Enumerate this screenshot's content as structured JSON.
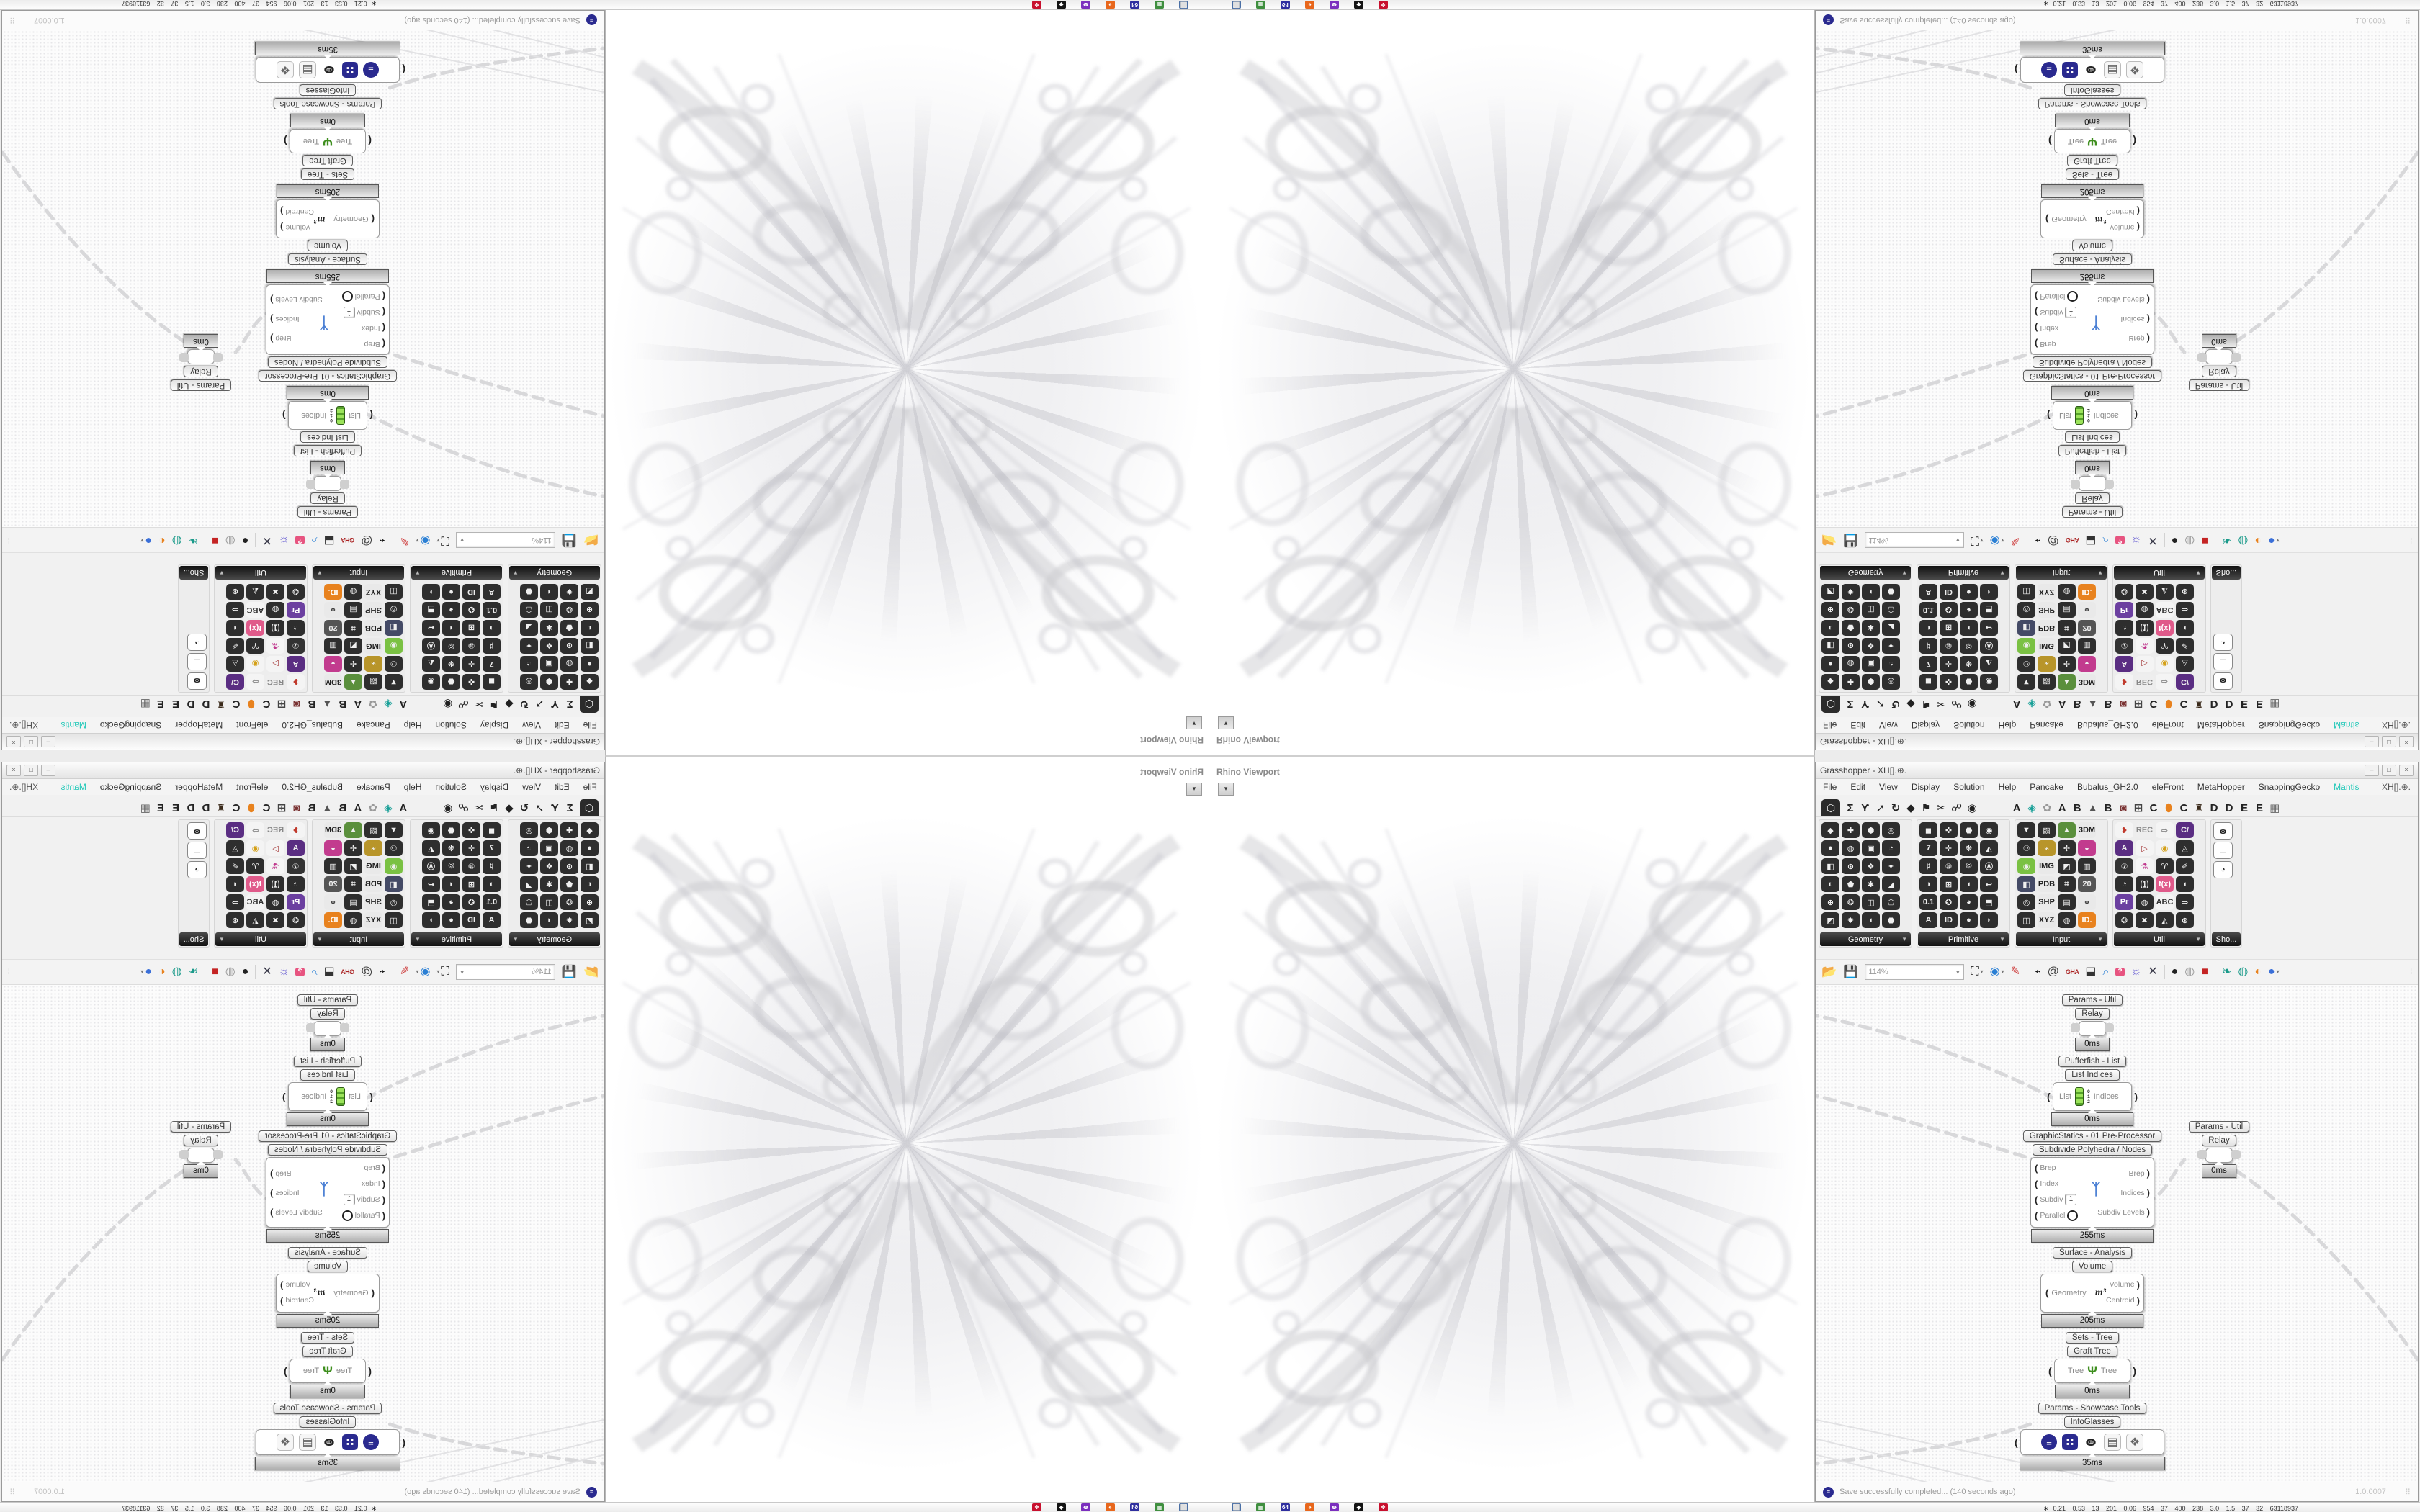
{
  "viewport": {
    "title": "Rhino Viewport",
    "dropdown_glyph": "▾"
  },
  "gh": {
    "title": "Grasshopper - XH[].⊕.",
    "window_buttons": {
      "minimize": "–",
      "maximize": "□",
      "close": "×"
    },
    "menus": [
      {
        "label": "File"
      },
      {
        "label": "Edit"
      },
      {
        "label": "View"
      },
      {
        "label": "Display"
      },
      {
        "label": "Solution"
      },
      {
        "label": "Help"
      },
      {
        "label": "Pancake"
      },
      {
        "label": "Bubalus_GH2.0"
      },
      {
        "label": "eleFront"
      },
      {
        "label": "MetaHopper"
      },
      {
        "label": "SnappingGecko"
      },
      {
        "label": "Mantis",
        "c": "#1fc8b8"
      }
    ],
    "menu_right": "XH[].⊕.",
    "tabs": [
      {
        "g": "⬡",
        "sel": true
      },
      {
        "g": "Σ"
      },
      {
        "g": "Ƴ"
      },
      {
        "g": "➚"
      },
      {
        "g": "↻"
      },
      {
        "g": "◆"
      },
      {
        "g": "⚑"
      },
      {
        "g": "✂"
      },
      {
        "g": "☍"
      },
      {
        "g": "◉"
      },
      {
        "sp": true
      },
      {
        "g": "A"
      },
      {
        "g": "◈",
        "c": "#1aa098"
      },
      {
        "g": "✿",
        "c": "#9a9a9a"
      },
      {
        "g": "A"
      },
      {
        "g": "B"
      },
      {
        "g": "▲",
        "c": "#555555"
      },
      {
        "g": "B"
      },
      {
        "g": "◙",
        "c": "#7a3333"
      },
      {
        "g": "⊞",
        "c": "#444444"
      },
      {
        "g": "C"
      },
      {
        "g": "⬮",
        "c": "#e8821e"
      },
      {
        "g": "C"
      },
      {
        "g": "♜",
        "c": "#3a2a1a"
      },
      {
        "g": "D"
      },
      {
        "g": "D"
      },
      {
        "g": "E"
      },
      {
        "g": "E"
      },
      {
        "g": "▦",
        "c": "#666666"
      }
    ],
    "panels": [
      {
        "label": "Geometry",
        "icons": [
          "◆",
          "✚",
          "⬢",
          "◎",
          "●",
          "◍",
          "▣",
          "◔",
          "◧",
          "⊙",
          "❖",
          "✦",
          "◐",
          "⬟",
          "✱",
          "◢",
          "⊕",
          "❂",
          "◫",
          "⬠",
          "◩",
          "✸",
          "◖",
          "⬣"
        ]
      },
      {
        "label": "Primitive",
        "icons": [
          "◼",
          "✜",
          "⬣",
          "◉",
          "7",
          "✛",
          "❋",
          "◭",
          "♯",
          "⑩",
          "©",
          "Ⓐ",
          "◑",
          "⊞",
          "◖",
          "↩",
          "0.1",
          "✪",
          "◕",
          "⬒",
          "A",
          "ID",
          "●",
          "◗"
        ]
      },
      {
        "label": "Input",
        "icons": [
          "▼",
          "▧",
          {
            "g": "▲",
            "b": "#5a8f3c"
          },
          {
            "g": "3DM",
            "b": "#e9e9e9",
            "c": "#222"
          },
          "⚇",
          {
            "g": "⌁",
            "b": "#b8952a"
          },
          "✢",
          {
            "g": "◒",
            "b": "#c23b8e"
          },
          {
            "g": "◉",
            "b": "#7ac143"
          },
          {
            "g": "IMG",
            "b": "#e9e9e9",
            "c": "#222"
          },
          "◩",
          "▥",
          {
            "g": "◧",
            "b": "#444a66"
          },
          {
            "g": "PDB",
            "b": "#e9e9e9",
            "c": "#222"
          },
          "⌗",
          {
            "g": "20",
            "b": "#555555"
          },
          "◎",
          {
            "g": "SHP",
            "b": "#e9e9e9",
            "c": "#222"
          },
          "▤",
          {
            "g": "⚭",
            "b": "#e9e9e9",
            "c": "#222"
          },
          "◫",
          {
            "g": "XYZ",
            "b": "#e9e9e9",
            "c": "#222"
          },
          "◍",
          {
            "g": "ID.",
            "b": "#e8821e",
            "c": "#fff"
          }
        ]
      },
      {
        "label": "Util",
        "icons": [
          {
            "g": "❥",
            "b": "#f4f4f4",
            "c": "#c0392b"
          },
          {
            "g": "REC",
            "b": "#eeeeee",
            "c": "#888888"
          },
          {
            "g": "⇨",
            "b": "#f4f4f4",
            "c": "#777777"
          },
          {
            "g": "C/",
            "b": "#5a2d82"
          },
          {
            "g": "A",
            "b": "#5a2d82"
          },
          {
            "g": "▷",
            "b": "#f4f4f4",
            "c": "#a33333"
          },
          {
            "g": "◉",
            "b": "#f4f4f4",
            "c": "#d4a017"
          },
          "◬",
          {
            "g": "⑦",
            "b": "#333333"
          },
          {
            "g": "⚗",
            "b": "#f4f4f4",
            "c": "#c0398e"
          },
          "♈",
          "✐",
          "◔",
          "⑴",
          {
            "g": "f(x)",
            "b": "#e05a8a",
            "c": "#ffffff"
          },
          "◖",
          {
            "g": "Pr",
            "b": "#6b3fa0",
            "c": "#ffffff"
          },
          "◍",
          {
            "g": "ABC",
            "b": "#f4f4f4",
            "c": "#333333"
          },
          "⇒",
          "❂",
          "✖",
          "◭",
          "⊛"
        ]
      },
      {
        "label": "Sho...",
        "icons": [
          "ꙫ",
          "▭",
          "◔"
        ]
      }
    ],
    "toolbar": {
      "open_glyph": "📂",
      "save_glyph": "💾",
      "zoom": "114%",
      "items": [
        {
          "g": "⛶",
          "caret": true,
          "name": "zoom-extents-icon"
        },
        {
          "g": "◉",
          "c": "#2a7fd4",
          "caret": true,
          "name": "preview-eye-icon"
        },
        {
          "g": "✎",
          "c": "#cc3333",
          "name": "sketch-pen-icon"
        },
        {
          "sep": true
        },
        {
          "g": "⌁",
          "c": "#111111",
          "name": "jack-plug-icon"
        },
        {
          "g": "@",
          "c": "#444444",
          "name": "at-icon"
        },
        {
          "g": "GHA",
          "c": "#aa2222",
          "small": true,
          "name": "gha-icon"
        },
        {
          "g": "⬓",
          "c": "#333333",
          "name": "export-box-icon"
        },
        {
          "g": "⌕",
          "c": "#2a7fd4",
          "name": "search-icon"
        },
        {
          "g": "?",
          "b": "#e75480",
          "c": "#ffffff",
          "name": "help-pink-icon"
        },
        {
          "g": "☼",
          "c": "#5a4fcf",
          "name": "lightbulb-icon"
        },
        {
          "g": "✕",
          "c": "#333344",
          "name": "dna-cross-icon"
        },
        {
          "sep": true
        },
        {
          "g": "●",
          "c": "#222222",
          "name": "dark-sphere-icon"
        },
        {
          "g": "◍",
          "c": "#999999",
          "name": "torus-icon"
        },
        {
          "g": "■",
          "c": "#c42323",
          "name": "red-box-icon"
        },
        {
          "sep": true
        },
        {
          "g": "❧",
          "c": "#1a9a8a",
          "name": "teal-leaf-icon"
        },
        {
          "g": "◍",
          "c": "#1a9a8a",
          "name": "teal-torus-icon"
        },
        {
          "g": "◐",
          "c": "#e8821e",
          "name": "orange-sphere-icon"
        },
        {
          "g": "●",
          "c": "#3a6fd8",
          "caret": true,
          "name": "blue-sphere-icon"
        }
      ],
      "overflow_glyph": "⁞"
    },
    "statusbar": {
      "message": "Save successfully completed... (140 seconds ago)",
      "version": "1.0.0007",
      "grip": "⠿"
    }
  },
  "canvas": {
    "labels": {
      "params_util": "Params - Util",
      "relay": "Relay",
      "pufferfish": "Pufferfish - List",
      "list_indices": "List Indices",
      "graphicstatics": "GraphicStatics - 01 Pre-Processor",
      "subdivide": "Subdivide Polyhedra / Nodes",
      "surface": "Surface - Analysis",
      "volume": "Volume",
      "sets_tree": "Sets - Tree",
      "graft_tree": "Graft Tree",
      "params_showcase": "Params - Showcase Tools",
      "infoglasses": "InfoGlasses"
    },
    "times": {
      "relay": "0ms",
      "list": "0ms",
      "subdiv": "255ms",
      "volume": "205ms",
      "graft": "0ms",
      "info": "35ms",
      "side": "0ms"
    },
    "ports": {
      "list_in": "List",
      "list_out": "Indices",
      "list_digits": "0 1 2",
      "sub_in": [
        "Brep",
        "Index",
        "Subdiv",
        "Parallel"
      ],
      "sub_val": "1",
      "sub_out": [
        "Brep",
        "Indices",
        "Subdiv Levels"
      ],
      "vol_in": "Geometry",
      "vol_icon": "m³",
      "vol_out": [
        "Volume",
        "Centroid"
      ],
      "tree_l": "Tree",
      "tree_r": "Tree",
      "seed_glyph": "Ψ",
      "subdiv_glyph": "ᛉ"
    },
    "info_icons": [
      {
        "g": "≡",
        "cls": "navy",
        "name": "infoglasses-profiler-icon"
      },
      {
        "g": "∷",
        "cls": "navysq",
        "name": "infoglasses-grid-icon"
      },
      {
        "g": "ꙫ",
        "cls": "dark",
        "name": "infoglasses-goggles-icon"
      },
      {
        "g": "▤",
        "cls": "grey",
        "name": "infoglasses-archive-icon"
      },
      {
        "g": "❖",
        "cls": "grey",
        "name": "infoglasses-puzzle-icon"
      }
    ]
  },
  "taskbar": {
    "apps": [
      {
        "g": "⬜",
        "b": "#4a6fa5",
        "name": "screen-app-icon"
      },
      {
        "g": "▦",
        "b": "#3f8f3f",
        "name": "drive-app-icon"
      },
      {
        "g": "64",
        "b": "#2f2f9f",
        "name": "floppy64-app-icon"
      },
      {
        "g": "◕",
        "b": "#e8671c",
        "name": "firefox-app-icon"
      },
      {
        "g": "ꙫ",
        "b": "#7b2fbe",
        "name": "owl-app-icon"
      },
      {
        "g": "◆",
        "b": "#141414",
        "name": "cat-app-icon"
      },
      {
        "g": "✽",
        "b": "#c8102e",
        "name": "badge-app-icon"
      }
    ],
    "sysmon_glyph": "∗",
    "monitor_text": "0.21 0.53 13 201 0.06 954 37 400 238 3.0 1.5 37 32 63118937",
    "charts": [
      {
        "w": 34,
        "h": 3,
        "c": "#e8d44d"
      },
      {
        "w": 20,
        "h": 9,
        "c": "#7b1fa2"
      },
      {
        "w": 17,
        "h": 8,
        "c": "#8d5a1e"
      },
      {
        "w": 15,
        "h": 10,
        "c": "#1e5a8d"
      },
      {
        "w": 15,
        "h": 13,
        "c": "#8d5a1e"
      },
      {
        "w": 22,
        "h": 2,
        "c": "#35c435"
      },
      {
        "w": 16,
        "h": 2,
        "c": "#c43535"
      }
    ]
  }
}
